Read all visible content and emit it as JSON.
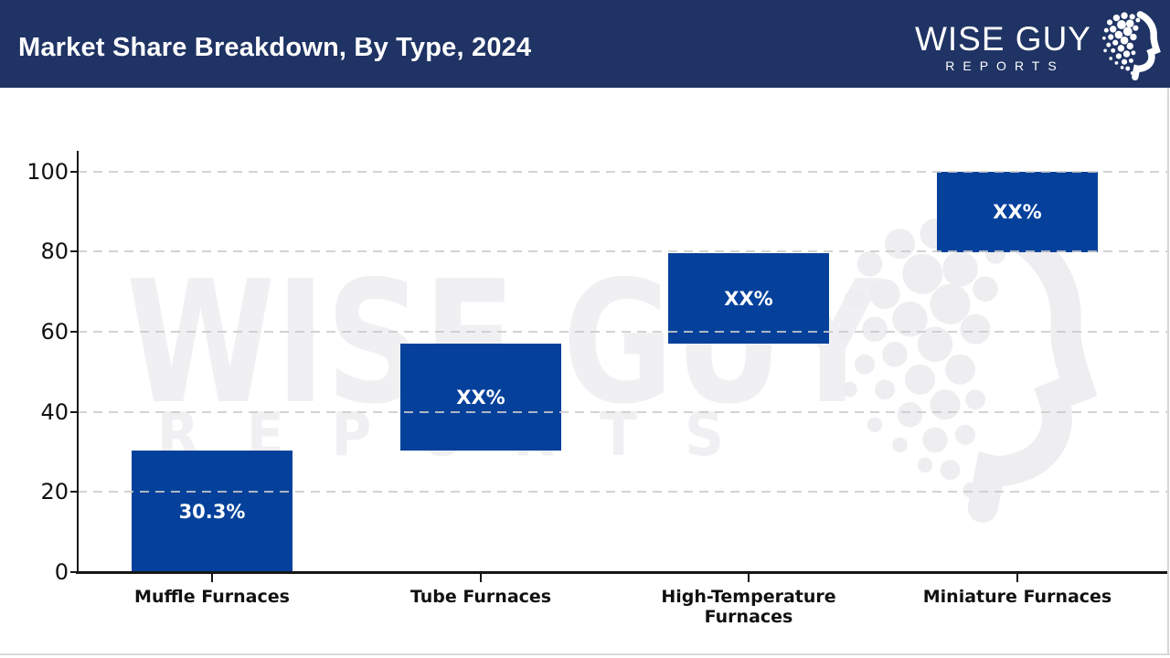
{
  "header": {
    "title": "Market Share Breakdown, By Type, 2024",
    "brand": {
      "line1": "WISE GUY",
      "line2": "REPORTS"
    }
  },
  "watermark": {
    "line1": "WISE GUY",
    "line2": "REPORTS"
  },
  "colors": {
    "header_bg": "#1F3364",
    "bar": "#05419B",
    "gridline": "#CBCBCB",
    "watermark": "#F0F0F3",
    "axis": "#161616"
  },
  "chart_data": {
    "type": "bar",
    "subtype": "floating-segment-waterfall",
    "title": "Market Share Breakdown, By Type, 2024",
    "categories": [
      "Muffle Furnaces",
      "Tube Furnaces",
      "High-Temperature Furnaces",
      "Miniature Furnaces"
    ],
    "segments": [
      {
        "category": "Muffle Furnaces",
        "start": 0,
        "end": 30.3,
        "label": "30.3%"
      },
      {
        "category": "Tube Furnaces",
        "start": 30.3,
        "end": 57.0,
        "label": "XX%"
      },
      {
        "category": "High-Temperature Furnaces",
        "start": 57.0,
        "end": 79.6,
        "label": "XX%"
      },
      {
        "category": "Miniature Furnaces",
        "start": 80.0,
        "end": 100.0,
        "label": "XX%"
      }
    ],
    "xlabel": "",
    "ylabel": "",
    "ylim": [
      0,
      100
    ],
    "yticks": [
      0,
      20,
      40,
      60,
      80,
      100
    ],
    "grid": "dashed horizontal",
    "legend": "none"
  }
}
